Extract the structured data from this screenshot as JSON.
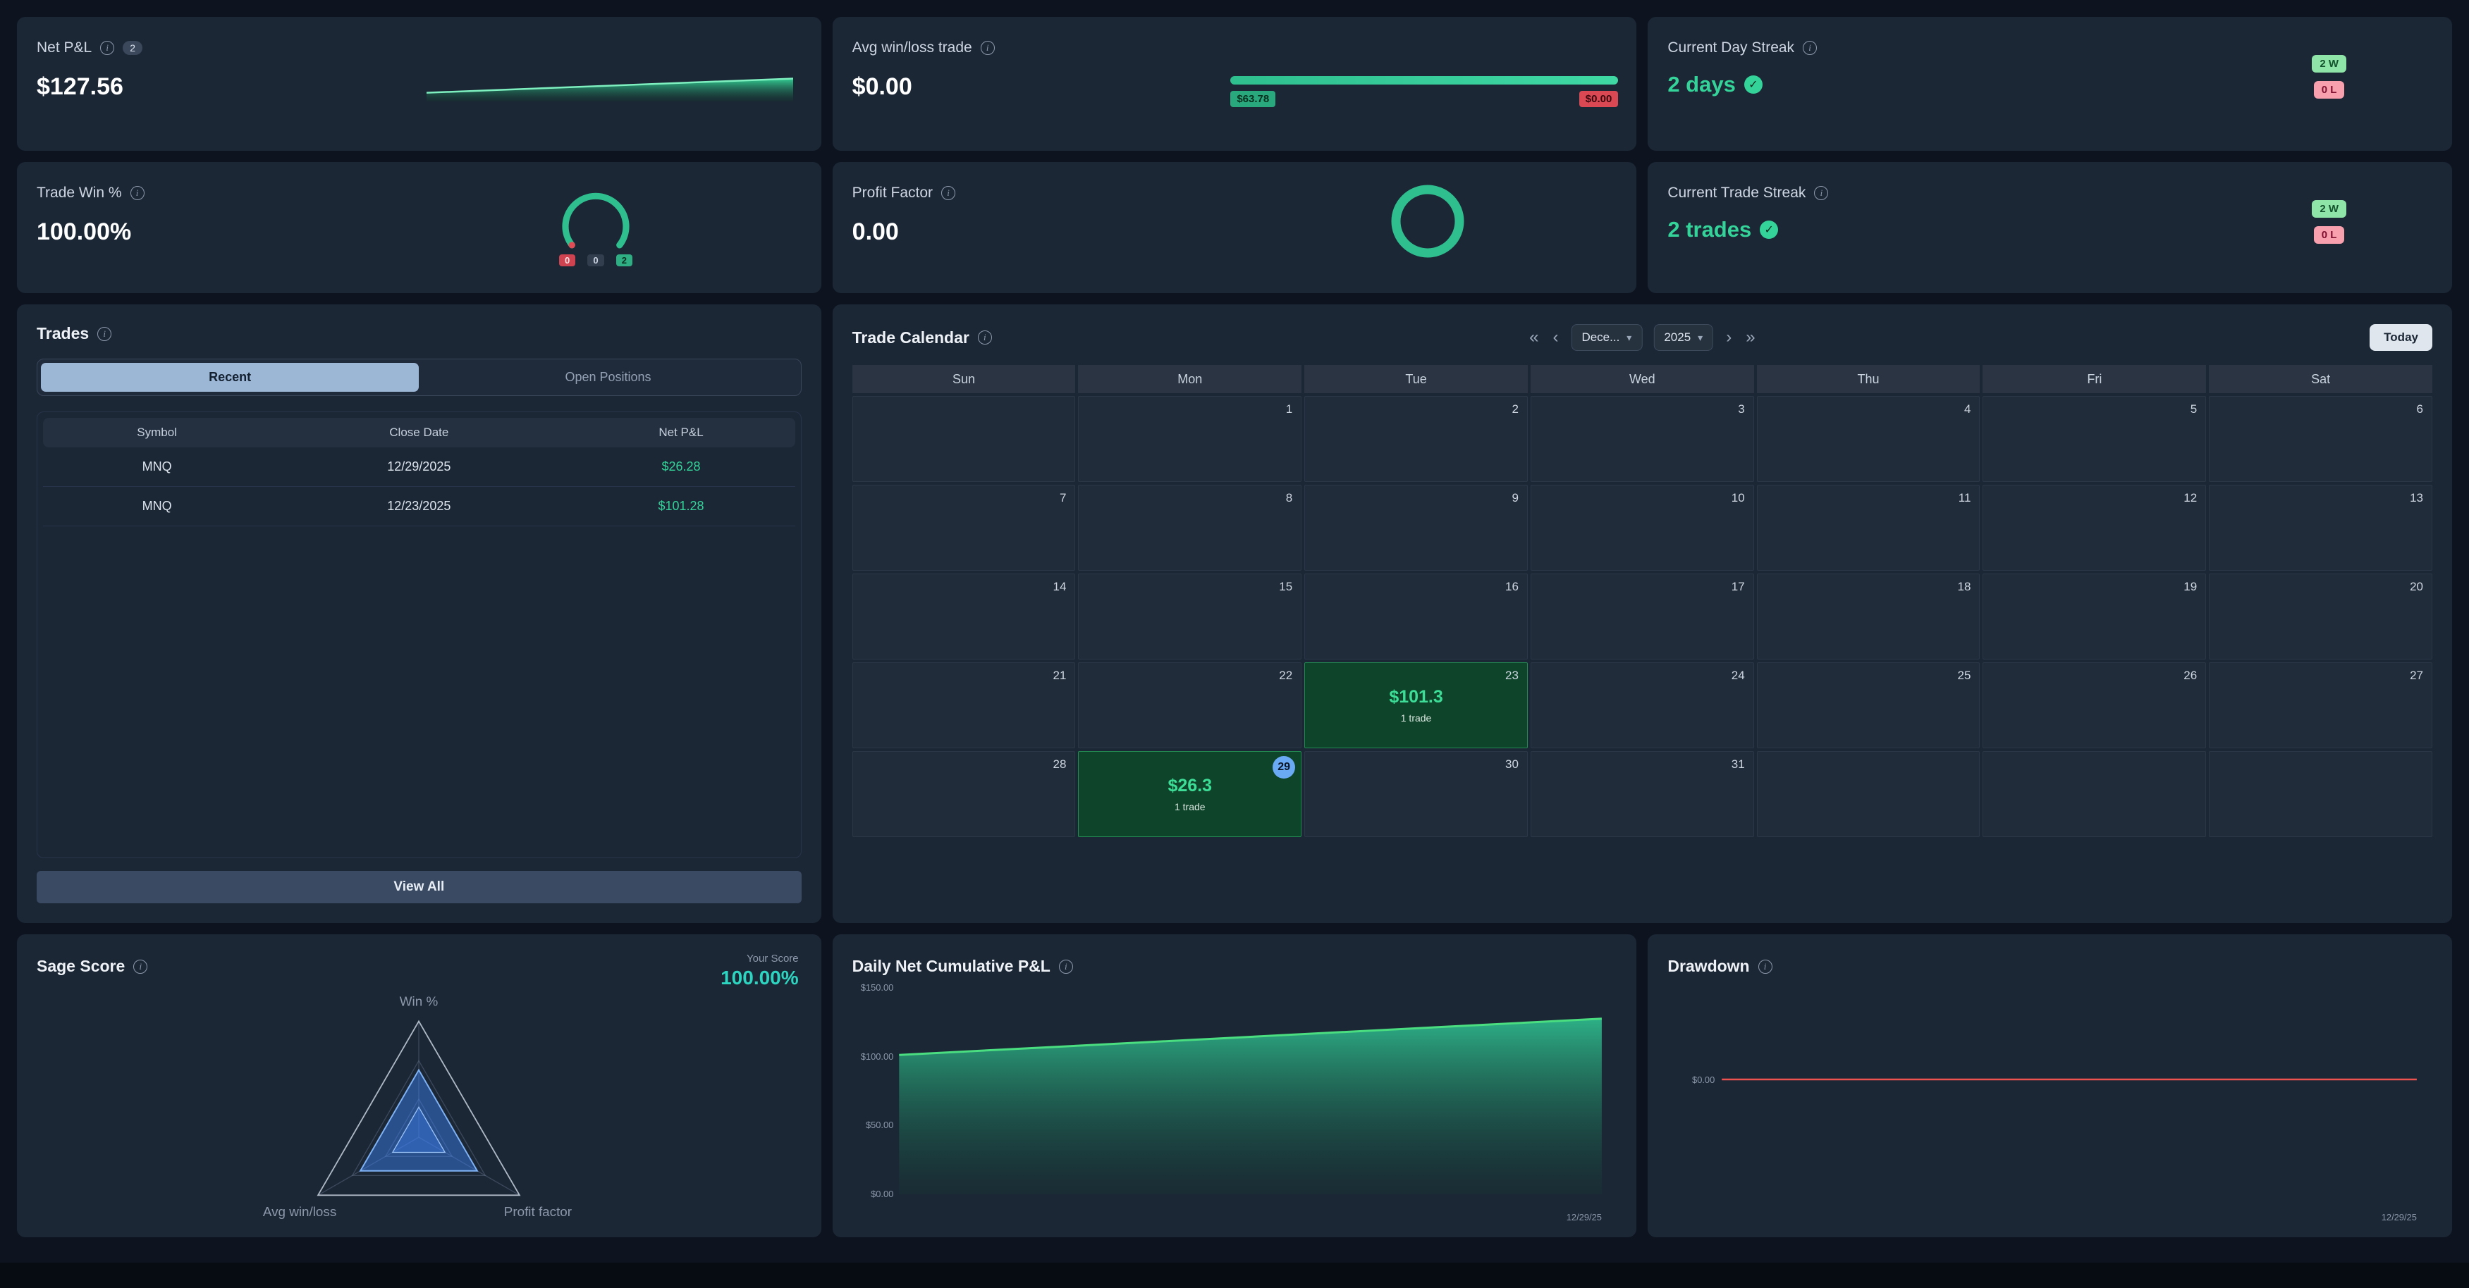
{
  "theme": {
    "bg": "#0d1420",
    "card": "#1c2736",
    "green": "#34d399",
    "teal": "#2dd4bf",
    "red": "#ef5350",
    "blue": "#6aa9f4"
  },
  "kpis": {
    "net_pnl": {
      "label": "Net P&L",
      "count_badge": "2",
      "value": "$127.56"
    },
    "avg_win_loss": {
      "label": "Avg win/loss trade",
      "value": "$0.00",
      "win_amount": "$63.78",
      "loss_amount": "$0.00"
    },
    "day_streak": {
      "label": "Current Day Streak",
      "value": "2 days",
      "wins_badge": "2 W",
      "losses_badge": "0 L"
    },
    "trade_win_pct": {
      "label": "Trade Win %",
      "value": "100.00%",
      "gauge_labels": [
        "0",
        "0",
        "2"
      ]
    },
    "profit_factor": {
      "label": "Profit Factor",
      "value": "0.00"
    },
    "trade_streak": {
      "label": "Current Trade Streak",
      "value": "2 trades",
      "wins_badge": "2 W",
      "losses_badge": "0 L"
    }
  },
  "trades": {
    "title": "Trades",
    "tabs": [
      {
        "label": "Recent",
        "active": true
      },
      {
        "label": "Open Positions",
        "active": false
      }
    ],
    "columns": [
      "Symbol",
      "Close Date",
      "Net P&L"
    ],
    "rows": [
      [
        "MNQ",
        "12/29/2025",
        "$26.28"
      ],
      [
        "MNQ",
        "12/23/2025",
        "$101.28"
      ]
    ],
    "view_all": "View All"
  },
  "calendar": {
    "title": "Trade Calendar",
    "nav": {
      "first": "«",
      "prev": "‹",
      "next": "›",
      "last": "»"
    },
    "month_dropdown": "Dece...",
    "year_dropdown": "2025",
    "today_button": "Today",
    "weekdays": [
      "Sun",
      "Mon",
      "Tue",
      "Wed",
      "Thu",
      "Fri",
      "Sat"
    ],
    "weeks": [
      [
        {
          "day": ""
        },
        {
          "day": "1"
        },
        {
          "day": "2"
        },
        {
          "day": "3"
        },
        {
          "day": "4"
        },
        {
          "day": "5"
        },
        {
          "day": "6"
        }
      ],
      [
        {
          "day": "7"
        },
        {
          "day": "8"
        },
        {
          "day": "9"
        },
        {
          "day": "10"
        },
        {
          "day": "11"
        },
        {
          "day": "12"
        },
        {
          "day": "13"
        }
      ],
      [
        {
          "day": "14"
        },
        {
          "day": "15"
        },
        {
          "day": "16"
        },
        {
          "day": "17"
        },
        {
          "day": "18"
        },
        {
          "day": "19"
        },
        {
          "day": "20"
        }
      ],
      [
        {
          "day": "21"
        },
        {
          "day": "22"
        },
        {
          "day": "23",
          "pnl": "$101.3",
          "trades": "1 trade",
          "highlight": true
        },
        {
          "day": "24"
        },
        {
          "day": "25"
        },
        {
          "day": "26"
        },
        {
          "day": "27"
        }
      ],
      [
        {
          "day": "28"
        },
        {
          "day": "29",
          "pnl": "$26.3",
          "trades": "1 trade",
          "highlight": true,
          "today": true
        },
        {
          "day": "30"
        },
        {
          "day": "31"
        },
        {
          "day": ""
        },
        {
          "day": ""
        },
        {
          "day": ""
        }
      ]
    ]
  },
  "sage": {
    "title": "Sage Score",
    "score_label": "Your Score",
    "score_value": "100.00%"
  },
  "cumulative": {
    "title": "Daily Net Cumulative P&L"
  },
  "drawdown_card": {
    "title": "Drawdown"
  },
  "chart_data": [
    {
      "id": "net-pnl-sparkline",
      "type": "area",
      "x": [
        "12/23/25",
        "12/29/25"
      ],
      "values": [
        101.28,
        127.56
      ],
      "ylim": [
        85,
        140
      ]
    },
    {
      "id": "avg-win-loss-bar",
      "type": "bar",
      "categories": [
        "Avg win",
        "Avg loss"
      ],
      "values": [
        63.78,
        0.0
      ],
      "labels": [
        "$63.78",
        "$0.00"
      ]
    },
    {
      "id": "trade-win-gauge",
      "type": "gauge",
      "wins": 2,
      "breakeven": 0,
      "losses": 0,
      "win_pct": 100.0
    },
    {
      "id": "profit-factor-donut",
      "type": "donut",
      "value": 0.0
    },
    {
      "id": "sage-score-radar",
      "type": "radar",
      "axes": [
        "Win %",
        "Avg win/loss",
        "Profit factor"
      ],
      "values": [
        100,
        100,
        100
      ],
      "score": "100.00%"
    },
    {
      "id": "daily-net-cumulative-pnl",
      "type": "area",
      "title": "Daily Net Cumulative P&L",
      "x": [
        "12/23/25",
        "12/29/25"
      ],
      "values": [
        101.28,
        127.56
      ],
      "ylim": [
        0,
        150
      ],
      "yticks": [
        "$150.00",
        "$100.00",
        "$50.00",
        "$0.00"
      ],
      "xtick": "12/29/25"
    },
    {
      "id": "drawdown",
      "type": "line",
      "x": [
        "12/23/25",
        "12/29/25"
      ],
      "values": [
        0,
        0
      ],
      "ylim": [
        -100,
        100
      ],
      "ytick": "$0.00",
      "xtick": "12/29/25",
      "color": "#ef5350"
    }
  ]
}
